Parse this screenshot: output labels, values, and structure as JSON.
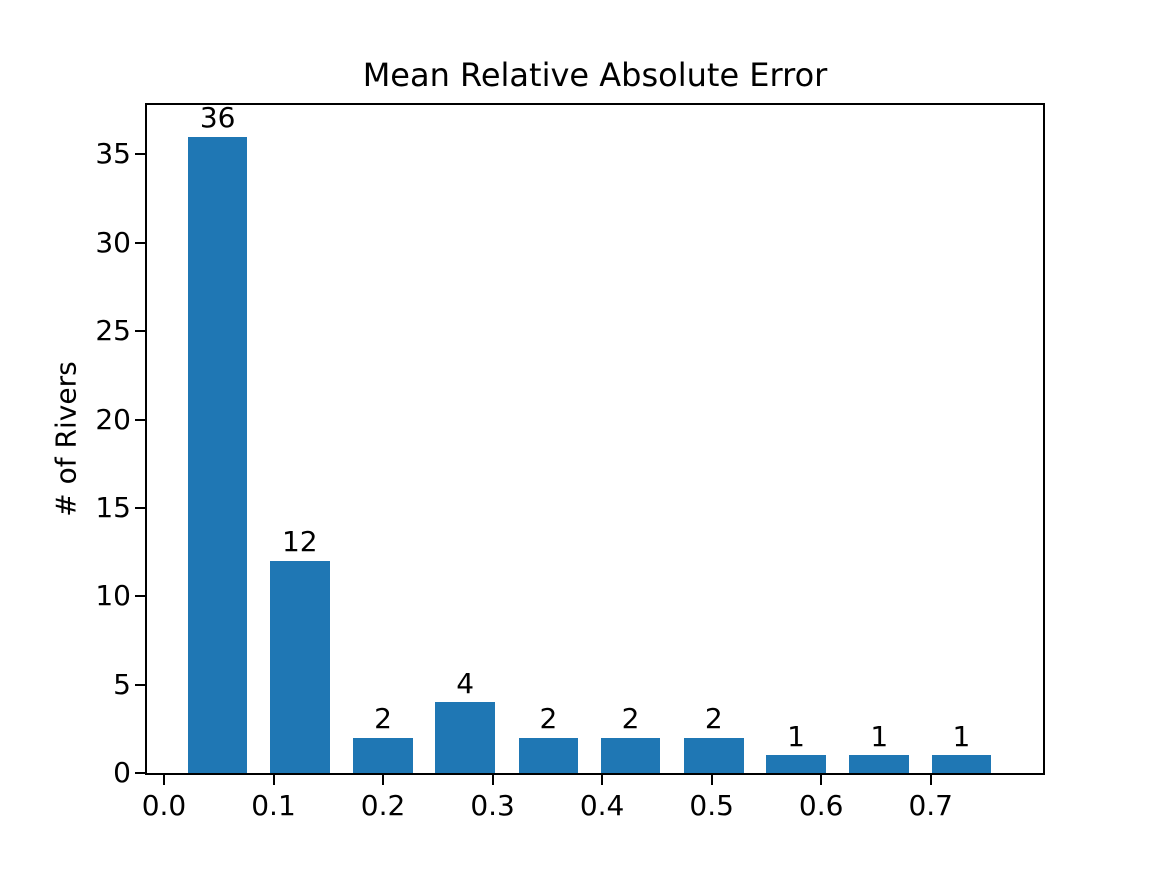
{
  "figure": {
    "background": "#ffffff",
    "text_color": "#000000",
    "spine_color": "#000000"
  },
  "chart_data": {
    "type": "bar",
    "title": "Mean Relative Absolute Error",
    "xlabel": "",
    "ylabel": "# of Rivers",
    "bar_color": "#1f77b4",
    "categories": [
      "0.049",
      "0.124",
      "0.200",
      "0.275",
      "0.351",
      "0.426",
      "0.502",
      "0.577",
      "0.653",
      "0.728"
    ],
    "bar_centers": [
      0.049,
      0.124,
      0.2,
      0.275,
      0.351,
      0.426,
      0.502,
      0.577,
      0.653,
      0.728
    ],
    "values": [
      36,
      12,
      2,
      4,
      2,
      2,
      2,
      1,
      1,
      1
    ],
    "bar_labels": [
      "36",
      "12",
      "2",
      "4",
      "2",
      "2",
      "2",
      "1",
      "1",
      "1"
    ],
    "bar_width": 0.0545,
    "xlim": [
      -0.0155,
      0.8025
    ],
    "ylim": [
      0,
      37.8
    ],
    "x_ticks": [
      0.0,
      0.1,
      0.2,
      0.3,
      0.4,
      0.5,
      0.6,
      0.7
    ],
    "x_tick_labels": [
      "0.0",
      "0.1",
      "0.2",
      "0.3",
      "0.4",
      "0.5",
      "0.6",
      "0.7"
    ],
    "y_ticks": [
      0,
      5,
      10,
      15,
      20,
      25,
      30,
      35
    ],
    "y_tick_labels": [
      "0",
      "5",
      "10",
      "15",
      "20",
      "25",
      "30",
      "35"
    ],
    "grid": false,
    "legend": null
  }
}
